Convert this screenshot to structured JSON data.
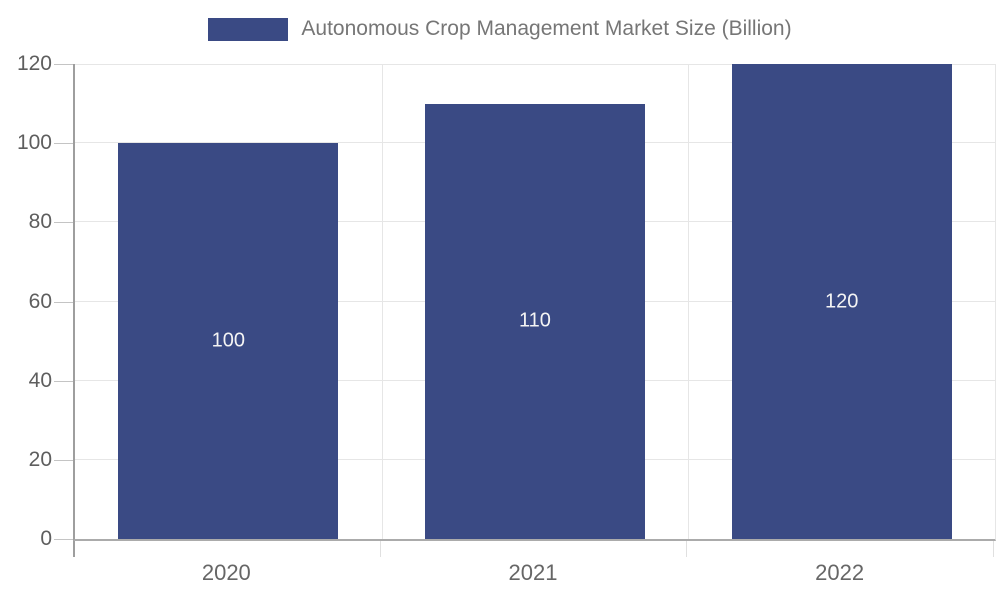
{
  "chart_data": {
    "type": "bar",
    "title": "",
    "legend": [
      "Autonomous Crop Management Market Size (Billion)"
    ],
    "legend_position": "top-center",
    "categories": [
      "2020",
      "2021",
      "2022"
    ],
    "series": [
      {
        "name": "Autonomous Crop Management Market Size (Billion)",
        "values": [
          100,
          110,
          120
        ],
        "data_labels": [
          "100",
          "110",
          "120"
        ]
      }
    ],
    "xlabel": "",
    "ylabel": "",
    "ylim": [
      0,
      120
    ],
    "yticks": [
      0,
      20,
      40,
      60,
      80,
      100,
      120
    ],
    "grid": true,
    "colors": {
      "bar": "#3a4a84",
      "bar_label_text": "#f4f4f4",
      "gridline": "#e6e6e6",
      "axis_line": "#9e9e9e",
      "tick_label": "#5e5e5e",
      "legend_text": "#767676",
      "background": "#ffffff"
    }
  }
}
